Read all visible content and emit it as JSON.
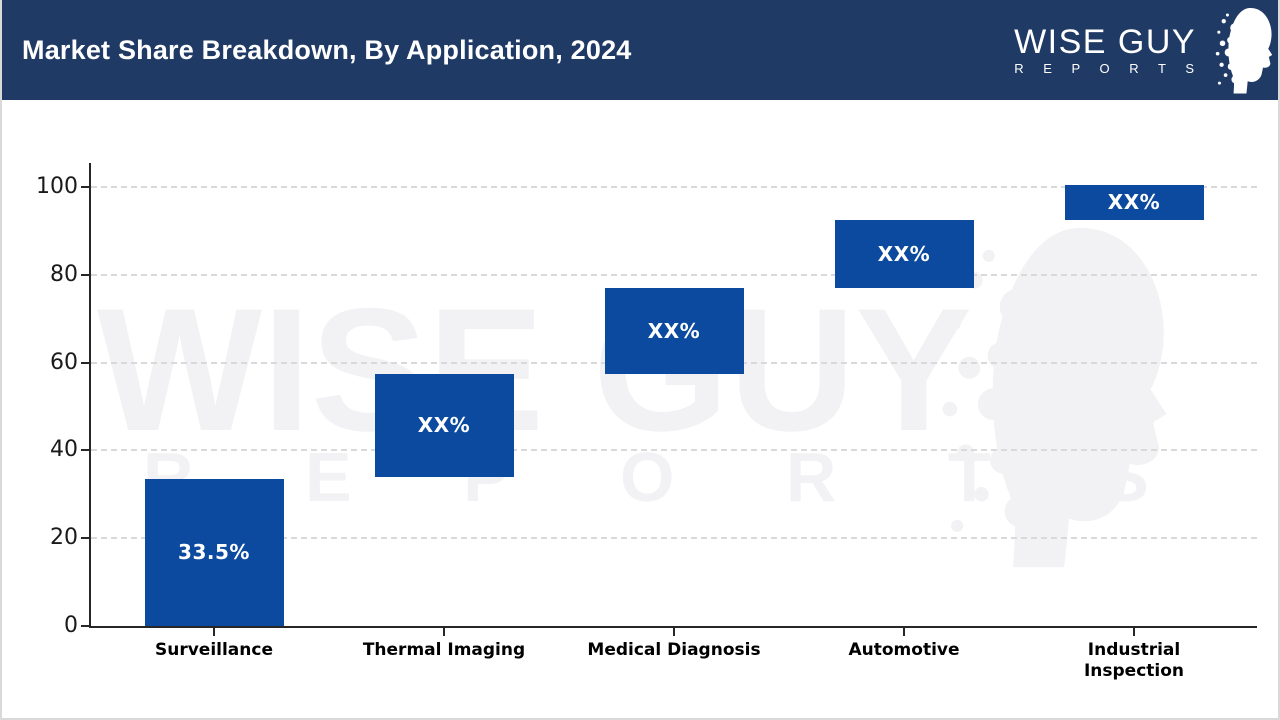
{
  "header": {
    "title": "Market Share Breakdown, By Application, 2024",
    "logo": {
      "brand": "WISE GUY",
      "brand_sub": "R E P O R T S",
      "icon": "dotted-face-profile"
    }
  },
  "watermark": {
    "brand": "WISE GUY",
    "brand_sub": "R E P O R T S",
    "icon": "dotted-face-profile"
  },
  "colors": {
    "header_bg": "#203a66",
    "bar": "#0b4a9e",
    "bar_label": "#ffffff",
    "axis": "#262626",
    "gridline": "#d9d9d9",
    "tick_label": "#1a1a1a",
    "watermark": "#f2f2f4"
  },
  "chart_data": {
    "type": "bar",
    "variant": "floating-segment waterfall of cumulative market share",
    "title": "Market Share Breakdown, By Application, 2024",
    "categories": [
      "Surveillance",
      "Thermal Imaging",
      "Medical Diagnosis",
      "Automotive",
      "Industrial Inspection"
    ],
    "xtick_labels": [
      "Surveillance",
      "Thermal Imaging",
      "Medical Diagnosis",
      "Automotive",
      "Industrial\nInspection"
    ],
    "segments": [
      {
        "category": "Surveillance",
        "from": 0,
        "to": 33.5,
        "label": "33.5%"
      },
      {
        "category": "Thermal Imaging",
        "from": 34,
        "to": 57.5,
        "label": "XX%"
      },
      {
        "category": "Medical Diagnosis",
        "from": 57.5,
        "to": 77,
        "label": "XX%"
      },
      {
        "category": "Automotive",
        "from": 77,
        "to": 92.5,
        "label": "XX%"
      },
      {
        "category": "Industrial Inspection",
        "from": 92.5,
        "to": 100.5,
        "label": "XX%"
      }
    ],
    "xlabel": "",
    "ylabel": "",
    "ylim": [
      0,
      100
    ],
    "yticks": [
      0,
      20,
      40,
      60,
      80,
      100
    ],
    "grid": "dashed horizontal gridlines",
    "legend": "none"
  }
}
